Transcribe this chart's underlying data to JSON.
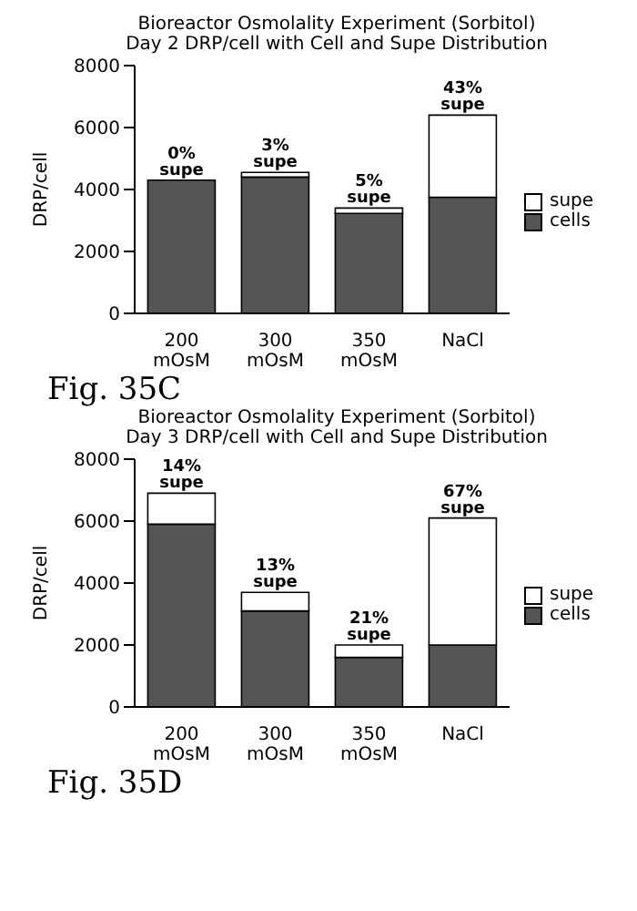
{
  "chart_data": [
    {
      "type": "bar",
      "title": "Bioreactor Osmolality Experiment (Sorbitol)",
      "subtitle": "Day 2 DRP/cell with Cell and Supe Distribution",
      "ylabel": "DRP/cell",
      "categories": [
        "200 mOsM",
        "300 mOsM",
        "350 mOsM",
        "NaCl"
      ],
      "stacked": true,
      "series": [
        {
          "name": "cells",
          "color": "#555555",
          "values": [
            4300,
            4400,
            3230,
            3750
          ]
        },
        {
          "name": "supe",
          "color": "#ffffff",
          "values": [
            0,
            150,
            170,
            2650
          ]
        }
      ],
      "ylim": [
        0,
        8000
      ],
      "yticks": [
        0,
        2000,
        4000,
        6000,
        8000
      ],
      "grid": false,
      "legend": "right",
      "annotations": [
        {
          "text": "0% supe",
          "x": "200 mOsM",
          "y": 4300
        },
        {
          "text": "3% supe",
          "x": "300 mOsM",
          "y": 4550
        },
        {
          "text": "5% supe",
          "x": "350 mOsM",
          "y": 3400
        },
        {
          "text": "43% supe",
          "x": "NaCl",
          "y": 6400
        },
        "Fig. 35C"
      ]
    },
    {
      "type": "bar",
      "title": "Bioreactor Osmolality Experiment (Sorbitol)",
      "subtitle": "Day 3 DRP/cell with Cell and Supe Distribution",
      "ylabel": "DRP/cell",
      "categories": [
        "200 mOsM",
        "300 mOsM",
        "350 mOsM",
        "NaCl"
      ],
      "stacked": true,
      "series": [
        {
          "name": "cells",
          "color": "#555555",
          "values": [
            5900,
            3100,
            1600,
            2000
          ]
        },
        {
          "name": "supe",
          "color": "#ffffff",
          "values": [
            1000,
            600,
            400,
            4100
          ]
        }
      ],
      "ylim": [
        0,
        8000
      ],
      "yticks": [
        0,
        2000,
        4000,
        6000,
        8000
      ],
      "grid": false,
      "legend": "right",
      "annotations": [
        {
          "text": "14% supe",
          "x": "200 mOsM",
          "y": 6900
        },
        {
          "text": "13% supe",
          "x": "300 mOsM",
          "y": 3700
        },
        {
          "text": "21% supe",
          "x": "350 mOsM",
          "y": 2000
        },
        {
          "text": "67% supe",
          "x": "NaCl",
          "y": 6100
        },
        "Fig. 35D"
      ]
    }
  ]
}
